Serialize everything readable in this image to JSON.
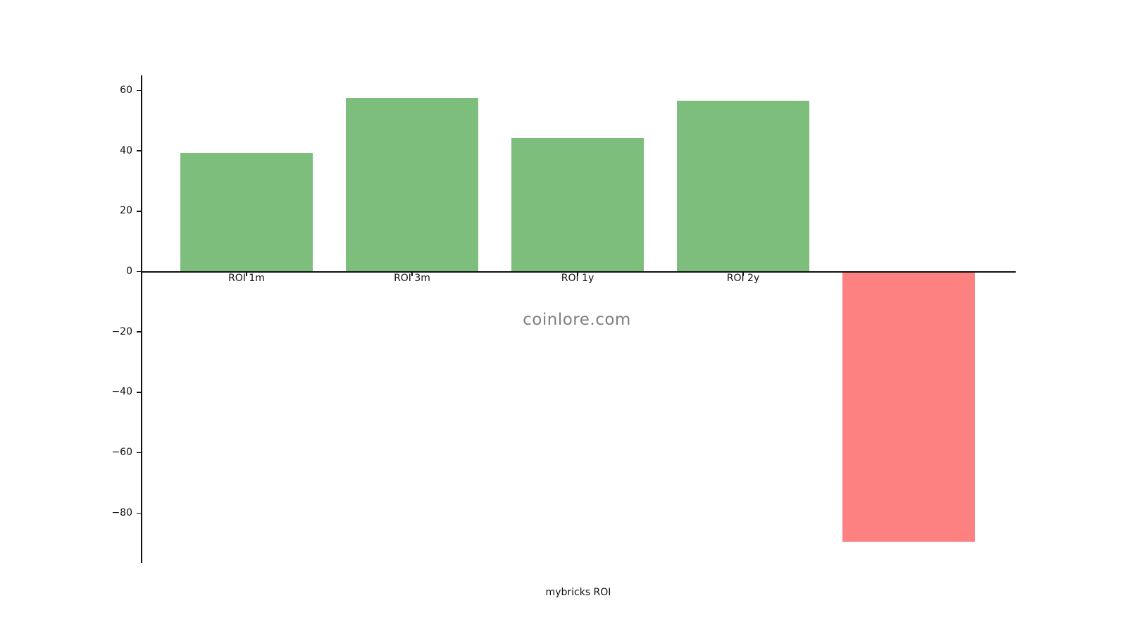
{
  "chart_data": {
    "type": "bar",
    "title": "",
    "xlabel": "mybricks ROI",
    "ylabel": "",
    "watermark": "coinlore.com",
    "categories": [
      "ROI 1m",
      "ROI 3m",
      "ROI 1y",
      "ROI 2y",
      ""
    ],
    "values": [
      39.3,
      57.5,
      44.2,
      56.5,
      -89.6
    ],
    "ylim": [
      -93,
      65
    ],
    "yticks": [
      {
        "value": 60,
        "label": "60"
      },
      {
        "value": 40,
        "label": "40"
      },
      {
        "value": 20,
        "label": "20"
      },
      {
        "value": 0,
        "label": "0"
      },
      {
        "value": -20,
        "label": "−20"
      },
      {
        "value": -40,
        "label": "−40"
      },
      {
        "value": -60,
        "label": "−60"
      },
      {
        "value": -80,
        "label": "−80"
      }
    ],
    "grid": false,
    "colors": {
      "positive": "#7dbe7d",
      "negative": "#fd8181",
      "axis": "#111111",
      "watermark_text": "#7f7f7f"
    }
  }
}
